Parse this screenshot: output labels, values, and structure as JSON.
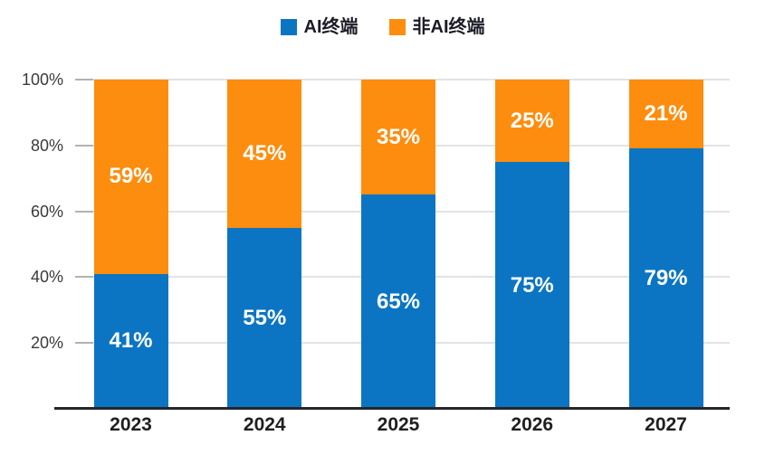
{
  "chart_data": {
    "type": "bar",
    "stacked": true,
    "orientation": "vertical",
    "title": "",
    "categories": [
      "2023",
      "2024",
      "2025",
      "2026",
      "2027"
    ],
    "series": [
      {
        "name": "AI终端",
        "color": "#0b75c3",
        "values": [
          41,
          55,
          65,
          75,
          79
        ]
      },
      {
        "name": "非AI终端",
        "color": "#fd8d0e",
        "values": [
          59,
          45,
          35,
          25,
          21
        ]
      }
    ],
    "value_label_suffix": "%",
    "value_label_color": "#ffffff",
    "y_axis": {
      "min": 0,
      "max": 100,
      "ticks": [
        {
          "label": "20%",
          "value": 20
        },
        {
          "label": "40%",
          "value": 40
        },
        {
          "label": "60%",
          "value": 60
        },
        {
          "label": "80%",
          "value": 80
        },
        {
          "label": "100%",
          "value": 100
        }
      ]
    },
    "grid": true,
    "legend_position": "top-center"
  },
  "colors": {
    "axis_line": "#26262b",
    "grid_line": "#e3e3e3",
    "tick_line": "#b2b2b2",
    "y_label": "#3a3a3a",
    "x_label": "#1f1f1f",
    "background": "#ffffff"
  }
}
